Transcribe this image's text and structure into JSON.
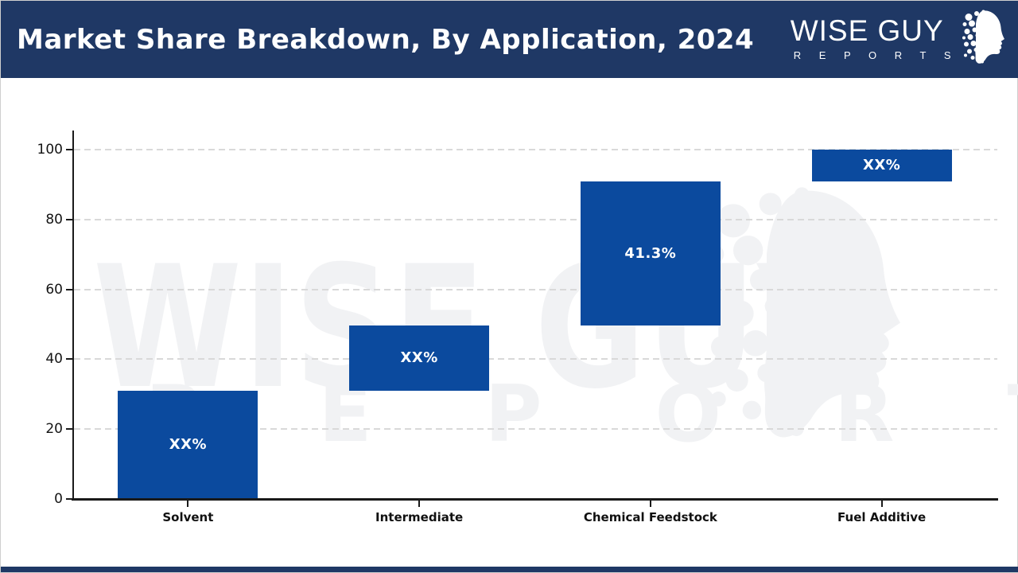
{
  "header": {
    "title": "Market Share Breakdown, By Application, 2024",
    "bg_color": "#1f3865",
    "logo": {
      "line1": "WISE GUY",
      "line2": "R E P O R T S"
    }
  },
  "watermark": {
    "line1": "WISE GUY",
    "line2": "R E P O R T S"
  },
  "chart_data": {
    "type": "bar",
    "subtype": "waterfall-segments",
    "title": "Market Share Breakdown, By Application, 2024",
    "categories": [
      "Solvent",
      "Intermediate",
      "Chemical Feedstock",
      "Fuel Additive"
    ],
    "segments": [
      {
        "category": "Solvent",
        "start": 0,
        "end": 31,
        "label": "XX%"
      },
      {
        "category": "Intermediate",
        "start": 31,
        "end": 49.7,
        "label": "XX%"
      },
      {
        "category": "Chemical Feedstock",
        "start": 49.7,
        "end": 91,
        "label": "41.3%"
      },
      {
        "category": "Fuel Additive",
        "start": 91,
        "end": 100,
        "label": "XX%"
      }
    ],
    "xlabel": "",
    "ylabel": "",
    "ylim": [
      0,
      100
    ],
    "yticks": [
      0,
      20,
      40,
      60,
      80,
      100
    ],
    "grid": "horizontal-dashed",
    "legend": "none",
    "bar_color": "#0b4a9e",
    "value_label_color": "#ffffff",
    "axis_color": "#1a1a1a",
    "gridline_color": "#d9d9d9"
  },
  "footer": {
    "bg_color": "#1f3865"
  }
}
